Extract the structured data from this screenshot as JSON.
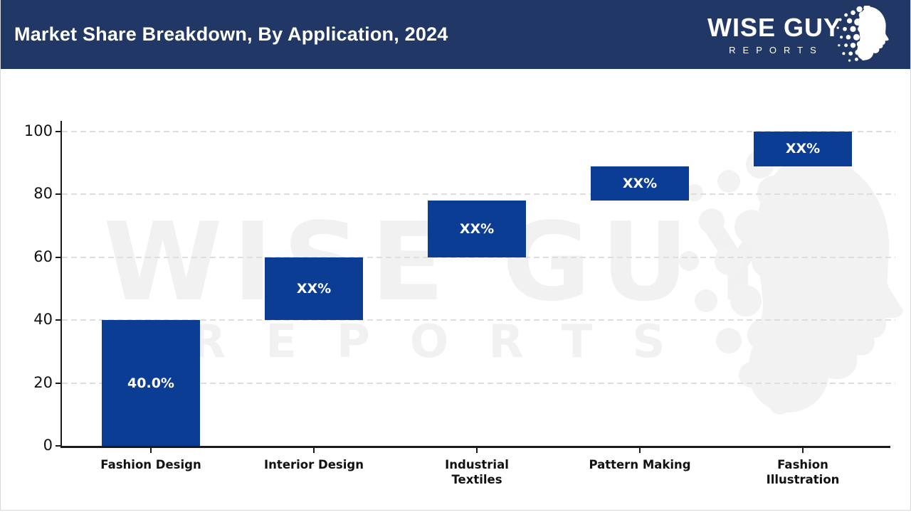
{
  "header": {
    "title": "Market Share Breakdown, By Application, 2024",
    "logo": {
      "name": "WISE GUY",
      "sub": "REPORTS"
    }
  },
  "watermark": {
    "line1": "WISE GUY",
    "line2": "REPORTS"
  },
  "chart_data": {
    "type": "bar",
    "subtype": "waterfall",
    "title": "Market Share Breakdown, By Application, 2024",
    "categories": [
      "Fashion Design",
      "Interior Design",
      "Industrial Textiles",
      "Pattern Making",
      "Fashion Illustration"
    ],
    "categories_display": [
      [
        "Fashion Design"
      ],
      [
        "Interior Design"
      ],
      [
        "Industrial",
        "Textiles"
      ],
      [
        "Pattern Making"
      ],
      [
        "Fashion",
        "Illustration"
      ]
    ],
    "values": [
      40.0,
      20.0,
      18.0,
      11.0,
      11.0
    ],
    "cumulative_start": [
      0,
      40,
      60,
      78,
      89
    ],
    "cumulative_end": [
      40,
      60,
      78,
      89,
      100
    ],
    "bar_labels": [
      "40.0%",
      "XX%",
      "XX%",
      "XX%",
      "XX%"
    ],
    "xlabel": "",
    "ylabel": "",
    "ylim": [
      0,
      100
    ],
    "yticks": [
      0,
      20,
      40,
      60,
      80,
      100
    ],
    "grid": "horizontal-dashed",
    "legend": "none",
    "bar_color": "#0c3d94",
    "bar_label_color": "#ffffff"
  },
  "colors": {
    "header_bg": "#213866",
    "bar": "#0c3d94",
    "axis": "#1a1a1a",
    "gridline": "#dedede",
    "watermark": "#f1f1f1"
  }
}
